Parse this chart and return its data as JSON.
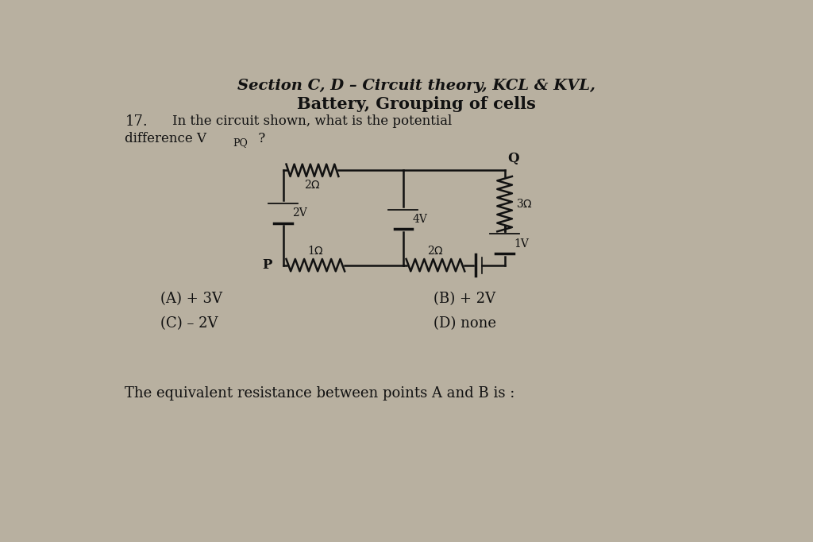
{
  "title_line1": "Section C, D – Circuit theory, KCL & KVL,",
  "title_line2": "Battery, Grouping of cells",
  "question_num": "17.",
  "question_text1": "In the circuit shown, what is the potential",
  "question_text2": "difference V",
  "question_text2b": "PQ",
  "question_text2c": " ?",
  "opt_A": "(A) + 3V",
  "opt_B": "(B) + 2V",
  "opt_C": "(C) – 2V",
  "opt_D": "(D) none",
  "bottom_text": "The equivalent resistance between points A and B is :",
  "bg_color": "#b8b0a0",
  "text_color": "#111111",
  "circuit_color": "#111111"
}
